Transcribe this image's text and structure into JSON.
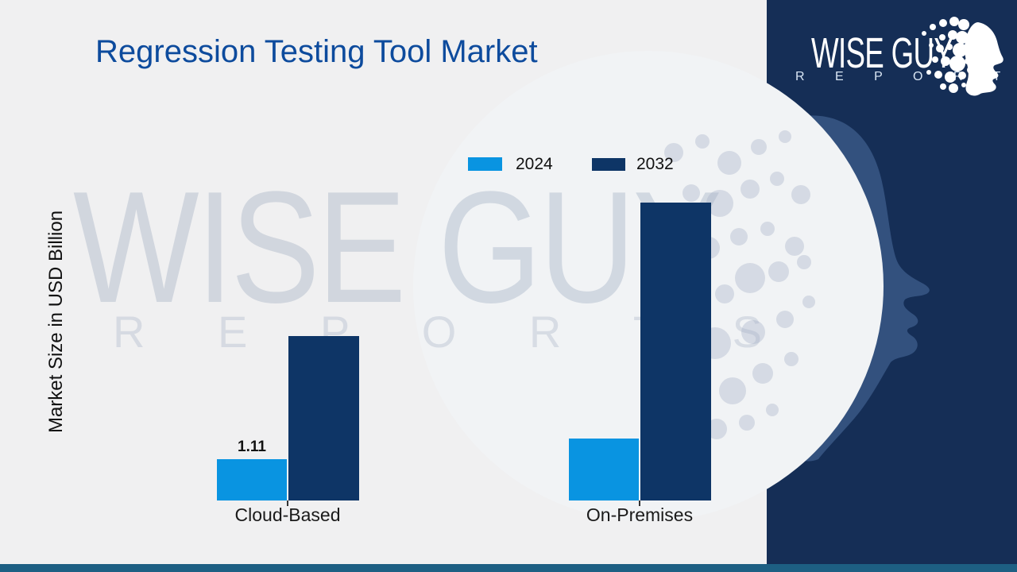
{
  "page": {
    "title": "Regression Testing Tool Market"
  },
  "watermark": {
    "line1": "WISE GUY",
    "line2": "R E P O R T S"
  },
  "logo": {
    "line1": "WISE GUY",
    "line2": "R E P O R T S"
  },
  "colors": {
    "title_blue": "#0d4b9d",
    "bar_2024_blue": "#0994e1",
    "bar_2032_navy": "#0e3566",
    "panel_navy": "#152e56",
    "face_silhouette_blue": "#33517e",
    "bottom_strip_teal": "#1d5f83",
    "background_gray": "#f0f0f1"
  },
  "chart_data": {
    "type": "bar",
    "title": "Regression Testing Tool Market",
    "ylabel": "Market Size in USD Billion",
    "categories": [
      "Cloud-Based",
      "On-Premises"
    ],
    "series": [
      {
        "name": "2024",
        "color": "#0994e1",
        "values": [
          1.11,
          1.66
        ],
        "data_labels": [
          "1.11",
          ""
        ]
      },
      {
        "name": "2032",
        "color": "#0e3566",
        "values": [
          4.42,
          8.0
        ],
        "data_labels": [
          "",
          ""
        ]
      }
    ],
    "value_axis_visible": false,
    "grid": false,
    "legend_position": "top-right"
  }
}
